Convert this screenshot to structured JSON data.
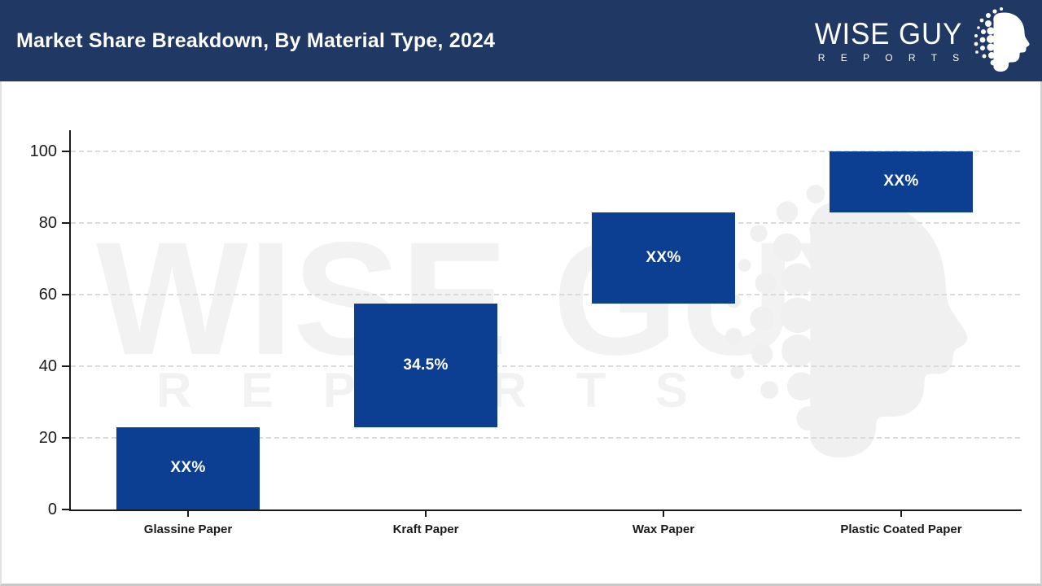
{
  "header": {
    "title": "Market Share Breakdown, By Material Type, 2024",
    "logo": {
      "line1": "WISE GUY",
      "line2": "R E P O R T S"
    }
  },
  "watermark": {
    "line1": "WISE GUY",
    "line2": "R E P O R T S"
  },
  "chart_data": {
    "type": "bar",
    "subtype": "floating-breakdown-bars",
    "title": "Market Share Breakdown, By Material Type, 2024",
    "categories": [
      "Glassine Paper",
      "Kraft Paper",
      "Wax Paper",
      "Plastic Coated Paper"
    ],
    "bars": [
      {
        "category": "Glassine Paper",
        "start": 0,
        "end": 23,
        "label": "XX%"
      },
      {
        "category": "Kraft Paper",
        "start": 23,
        "end": 57.5,
        "label": "34.5%"
      },
      {
        "category": "Wax Paper",
        "start": 57.5,
        "end": 83,
        "label": "XX%"
      },
      {
        "category": "Plastic Coated Paper",
        "start": 83,
        "end": 100,
        "label": "XX%"
      }
    ],
    "xlabel": "",
    "ylabel": "",
    "ylim": [
      0,
      100
    ],
    "yticks": [
      0,
      20,
      40,
      60,
      80,
      100
    ],
    "grid": "horizontal-dashed",
    "legend": "none",
    "bar_color": "#0C3E92"
  },
  "colors": {
    "header_bg": "#1F3864",
    "bar": "#0C3E92",
    "grid": "#DADADA",
    "axis": "#1A1A1A",
    "watermark": "#F2F2F2",
    "frame_border": "#C9C9C9"
  }
}
